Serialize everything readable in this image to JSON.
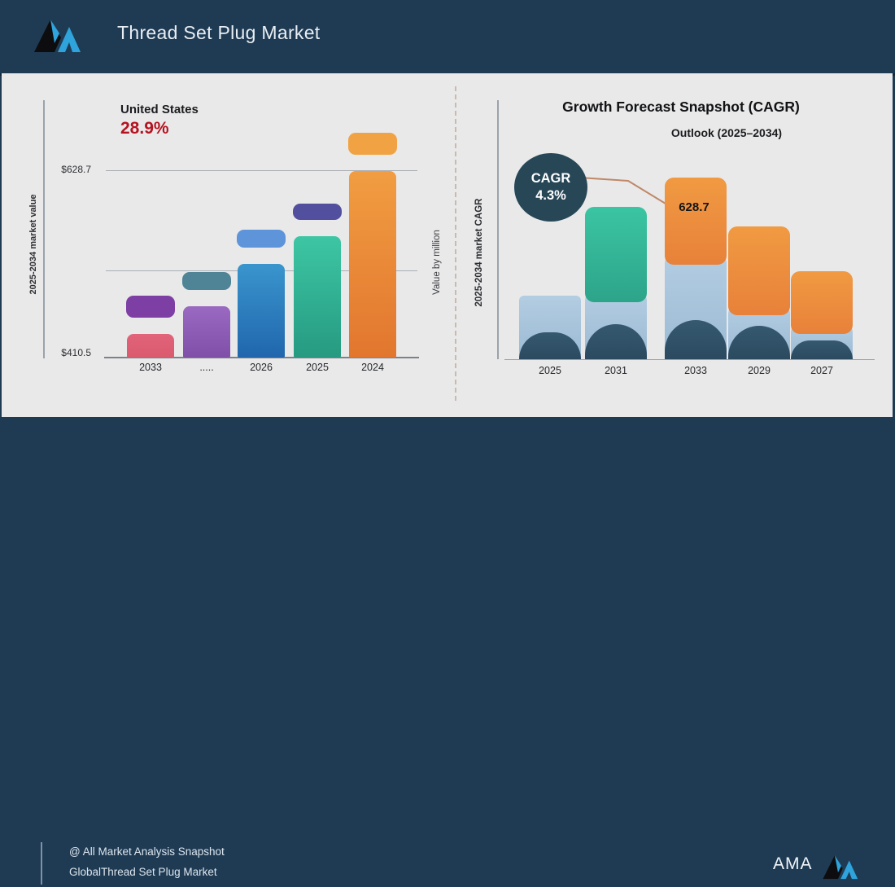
{
  "header": {
    "title": "Thread Set Plug Market"
  },
  "footer": {
    "line1": "@ All Market Analysis Snapshot",
    "line2": "GlobalThread Set Plug Market",
    "brand": "AMA"
  },
  "colors": {
    "header_bg": "#1f3b54",
    "panel_bg": "#e9e9ea",
    "accent_red": "#b51320",
    "badge_navy": "#274757",
    "connector": "#c08868",
    "logo_blue": "#2ea3dc",
    "logo_black": "#0d0d0f"
  },
  "chart_data": [
    {
      "type": "bar",
      "title": "United States",
      "annotation": "28.9%",
      "ylabel": "2025-2034 market value",
      "ylabel_right": "Value by million",
      "yticks": [
        410.5,
        628.7
      ],
      "ytick_labels": [
        "$410.5",
        "$628.7"
      ],
      "ylim": [
        410.5,
        660
      ],
      "grid": "horizontal",
      "categories": [
        "2033",
        ".....",
        "2026",
        "2025",
        "2024"
      ],
      "values": [
        438,
        471,
        520,
        552,
        628.7
      ],
      "bars": [
        {
          "category": "2033",
          "value": 438,
          "color": "#e2647a",
          "color2": "#da5a6e",
          "cap_color": "#7e3fa4",
          "cap_h": 27
        },
        {
          "category": ".....",
          "value": 471,
          "color": "#9a69c1",
          "color2": "#8050a8",
          "cap_color": "#4f8496",
          "cap_h": 22
        },
        {
          "category": "2026",
          "value": 520,
          "color": "#3a95cd",
          "color2": "#2066ad",
          "cap_color": "#5e94d9",
          "cap_h": 22
        },
        {
          "category": "2025",
          "value": 552,
          "color": "#3dc6a4",
          "color2": "#269a81",
          "cap_color": "#524f9e",
          "cap_h": 20
        },
        {
          "category": "2024",
          "value": 628.7,
          "color": "#f19d42",
          "color2": "#e2762e",
          "cap_color": "#f1a343",
          "cap_h": 27
        }
      ]
    },
    {
      "type": "stacked-bar",
      "title": "Growth Forecast Snapshot (CAGR)",
      "subtitle": "Outlook (2025–2034)",
      "ylabel": "2025-2034 market CAGR",
      "badge_line1": "CAGR",
      "badge_line2": "4.3%",
      "bar_label": "628.7",
      "bar_label_category": "2033",
      "categories": [
        "2025",
        "2031",
        "2033",
        "2029",
        "2027"
      ],
      "series_colors": {
        "base_navy": "#2f5269",
        "mid_lightblue": "#abc7de",
        "accent_orange": "#ee9440",
        "accent_teal": "#35bf9d"
      },
      "bars": [
        {
          "category": "2025",
          "top_color": "",
          "top_color2": "",
          "top_h": 0,
          "mid_h": 78,
          "base_h": 33
        },
        {
          "category": "2031",
          "top_color": "#3bc5a2",
          "top_color2": "#2da48a",
          "top_h": 105,
          "mid_h": 82,
          "base_h": 43
        },
        {
          "category": "2033",
          "top_color": "#f09a42",
          "top_color2": "#e8813a",
          "top_h": 95,
          "mid_h": 128,
          "base_h": 48
        },
        {
          "category": "2029",
          "top_color": "#f09a42",
          "top_color2": "#e8813a",
          "top_h": 97,
          "mid_h": 66,
          "base_h": 41
        },
        {
          "category": "2027",
          "top_color": "#f09a42",
          "top_color2": "#e8813a",
          "top_h": 65,
          "mid_h": 43,
          "base_h": 23
        }
      ]
    }
  ]
}
